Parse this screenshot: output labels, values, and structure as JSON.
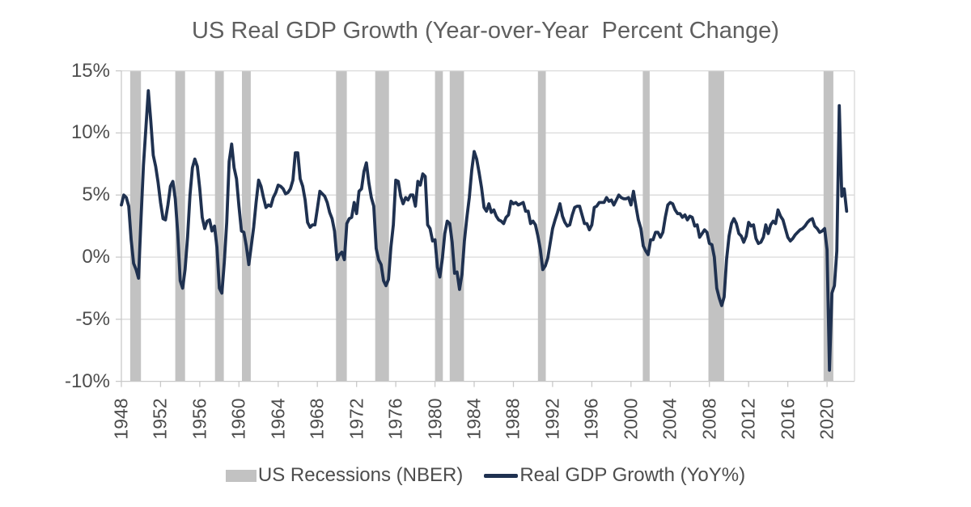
{
  "title": "US Real GDP Growth (Year-over-Year  Percent Change)",
  "legend": {
    "recessions_label": "US Recessions (NBER)",
    "line_label": "Real GDP Growth (YoY%)"
  },
  "colors": {
    "line": "#1f3150",
    "recession": "#c2c2c2",
    "grid": "#d9d9d9",
    "axis": "#c9c9c9",
    "tick_text": "#4d4d4d",
    "title_text": "#5f5f5f"
  },
  "chart_data": {
    "type": "line",
    "title": "US Real GDP Growth (Year-over-Year  Percent Change)",
    "xlabel": "",
    "ylabel": "",
    "ylim": [
      -10,
      15
    ],
    "xlim": [
      1948,
      2022.8
    ],
    "grid": true,
    "legend_position": "bottom",
    "y_ticks": [
      {
        "label": "15%",
        "value": 15
      },
      {
        "label": "10%",
        "value": 10
      },
      {
        "label": "5%",
        "value": 5
      },
      {
        "label": "0%",
        "value": 0
      },
      {
        "label": "-5%",
        "value": -5
      },
      {
        "label": "-10%",
        "value": -10
      }
    ],
    "x_ticks": [
      "1948",
      "1952",
      "1956",
      "1960",
      "1964",
      "1968",
      "1972",
      "1976",
      "1980",
      "1984",
      "1988",
      "1992",
      "1996",
      "2000",
      "2004",
      "2008",
      "2012",
      "2016",
      "2020"
    ],
    "recessions": [
      [
        1948.9,
        1950.0
      ],
      [
        1953.5,
        1954.5
      ],
      [
        1957.55,
        1958.45
      ],
      [
        1960.3,
        1961.2
      ],
      [
        1969.9,
        1971.0
      ],
      [
        1973.9,
        1975.3
      ],
      [
        1980.0,
        1980.8
      ],
      [
        1981.5,
        1982.95
      ],
      [
        1990.5,
        1991.3
      ],
      [
        2001.2,
        2001.9
      ],
      [
        2007.9,
        2009.5
      ],
      [
        2019.65,
        2020.65
      ]
    ],
    "series": [
      {
        "name": "Real GDP Growth (YoY%)",
        "x_start": 1948,
        "x_step_years": 0.25,
        "unit": "percent",
        "values": [
          4.2,
          5.0,
          4.8,
          4.1,
          1.4,
          -0.5,
          -1.0,
          -1.7,
          3.0,
          7.4,
          10.4,
          13.4,
          11.0,
          8.2,
          7.3,
          6.0,
          4.4,
          3.1,
          3.0,
          4.2,
          5.7,
          6.1,
          4.7,
          2.0,
          -1.9,
          -2.5,
          -1.0,
          1.6,
          5.0,
          7.2,
          7.9,
          7.3,
          5.5,
          3.2,
          2.3,
          2.9,
          3.0,
          2.1,
          2.5,
          0.8,
          -2.5,
          -2.9,
          -0.4,
          2.8,
          7.7,
          9.1,
          7.2,
          6.3,
          4.1,
          2.1,
          2.0,
          0.9,
          -0.6,
          0.9,
          2.4,
          4.4,
          6.2,
          5.7,
          4.8,
          4.0,
          4.2,
          4.1,
          4.8,
          5.2,
          5.8,
          5.7,
          5.5,
          5.1,
          5.2,
          5.5,
          6.2,
          8.4,
          8.4,
          6.3,
          5.7,
          4.6,
          2.8,
          2.4,
          2.6,
          2.6,
          3.9,
          5.3,
          5.1,
          4.9,
          4.4,
          3.6,
          3.1,
          2.1,
          -0.2,
          0.2,
          0.4,
          -0.2,
          2.7,
          3.1,
          3.2,
          4.4,
          3.5,
          5.3,
          5.5,
          6.9,
          7.6,
          6.0,
          4.8,
          4.1,
          0.7,
          -0.2,
          -0.6,
          -1.9,
          -2.3,
          -1.8,
          0.8,
          2.6,
          6.2,
          6.1,
          4.9,
          4.3,
          4.8,
          4.6,
          5.0,
          5.0,
          4.1,
          6.1,
          5.8,
          6.7,
          6.5,
          2.6,
          2.3,
          1.3,
          1.4,
          -0.8,
          -1.6,
          -0.1,
          1.9,
          2.9,
          2.7,
          1.2,
          -1.3,
          -1.2,
          -2.6,
          -1.4,
          1.3,
          3.2,
          4.8,
          7.0,
          8.5,
          7.9,
          6.8,
          5.6,
          4.0,
          3.7,
          4.3,
          3.6,
          3.8,
          3.3,
          3.0,
          2.9,
          2.7,
          3.2,
          3.4,
          4.5,
          4.3,
          4.4,
          4.2,
          4.3,
          4.4,
          3.7,
          3.7,
          2.7,
          2.9,
          2.6,
          1.7,
          0.6,
          -1.0,
          -0.7,
          -0.1,
          1.1,
          2.3,
          3.0,
          3.6,
          4.3,
          3.3,
          2.8,
          2.5,
          2.6,
          3.4,
          4.0,
          4.1,
          4.1,
          3.4,
          2.7,
          2.7,
          2.2,
          2.6,
          4.0,
          4.1,
          4.4,
          4.4,
          4.4,
          4.8,
          4.5,
          4.6,
          4.2,
          4.6,
          5.0,
          4.8,
          4.7,
          4.7,
          4.8,
          4.2,
          5.3,
          4.1,
          3.0,
          2.3,
          0.9,
          0.5,
          0.2,
          1.4,
          1.4,
          2.0,
          2.0,
          1.6,
          2.0,
          3.2,
          4.2,
          4.4,
          4.3,
          3.8,
          3.5,
          3.5,
          3.2,
          3.4,
          3.0,
          3.3,
          3.2,
          2.5,
          2.6,
          1.6,
          1.9,
          2.2,
          2.0,
          1.1,
          1.0,
          0.0,
          -2.5,
          -3.3,
          -3.9,
          -3.2,
          -0.2,
          1.7,
          2.7,
          3.1,
          2.7,
          1.9,
          1.7,
          1.2,
          1.7,
          2.8,
          2.5,
          2.6,
          1.5,
          1.1,
          1.2,
          1.6,
          2.6,
          1.9,
          2.6,
          2.9,
          2.7,
          3.8,
          3.3,
          3.0,
          2.3,
          1.6,
          1.3,
          1.5,
          1.8,
          2.0,
          2.2,
          2.3,
          2.5,
          2.8,
          3.0,
          3.1,
          2.5,
          2.3,
          2.0,
          2.1,
          2.3,
          0.6,
          -9.1,
          -2.9,
          -2.3,
          0.5,
          12.2,
          4.9,
          5.5,
          3.7
        ]
      }
    ]
  }
}
